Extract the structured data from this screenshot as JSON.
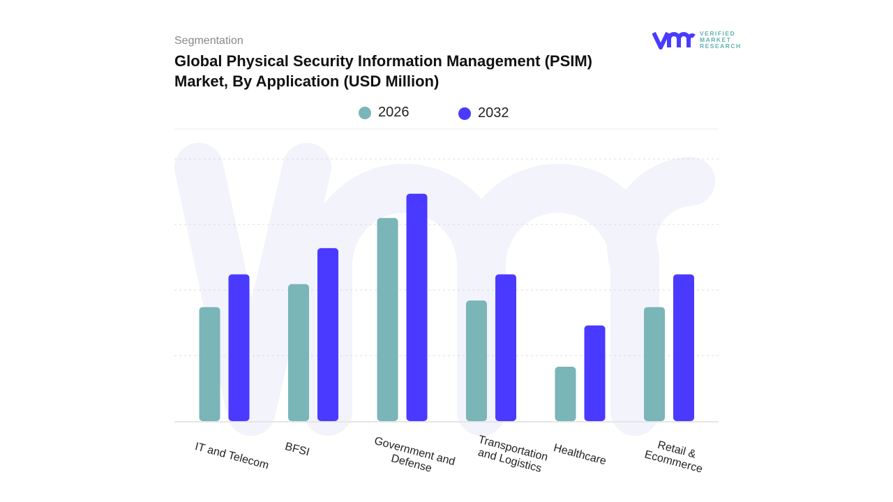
{
  "header": {
    "subtitle": "Segmentation",
    "title": "Global Physical Security Information Management (PSIM) Market, By Application (USD Million)"
  },
  "logo": {
    "text_lines": [
      "VERIFIED",
      "MARKET",
      "RESEARCH"
    ],
    "brand_color": "#4a3aff"
  },
  "chart_data": {
    "type": "bar",
    "title": "Global Physical Security Information Management (PSIM) Market, By Application (USD Million)",
    "categories": [
      "IT and Telecom",
      "BFSI",
      "Government and Defense",
      "Transportation and Logistics",
      "Healthcare",
      "Retail & Ecommerce"
    ],
    "series": [
      {
        "name": "2026",
        "color": "#7ab5b8",
        "values": [
          1.74,
          2.09,
          3.1,
          1.84,
          0.83,
          1.74
        ]
      },
      {
        "name": "2032",
        "color": "#4a3aff",
        "values": [
          2.24,
          2.64,
          3.47,
          2.24,
          1.46,
          2.24
        ]
      }
    ],
    "ylim": [
      0,
      4
    ],
    "y_tick_labels_shown": false,
    "grid": true,
    "legend": "top-center",
    "xlabel": "",
    "ylabel": ""
  }
}
